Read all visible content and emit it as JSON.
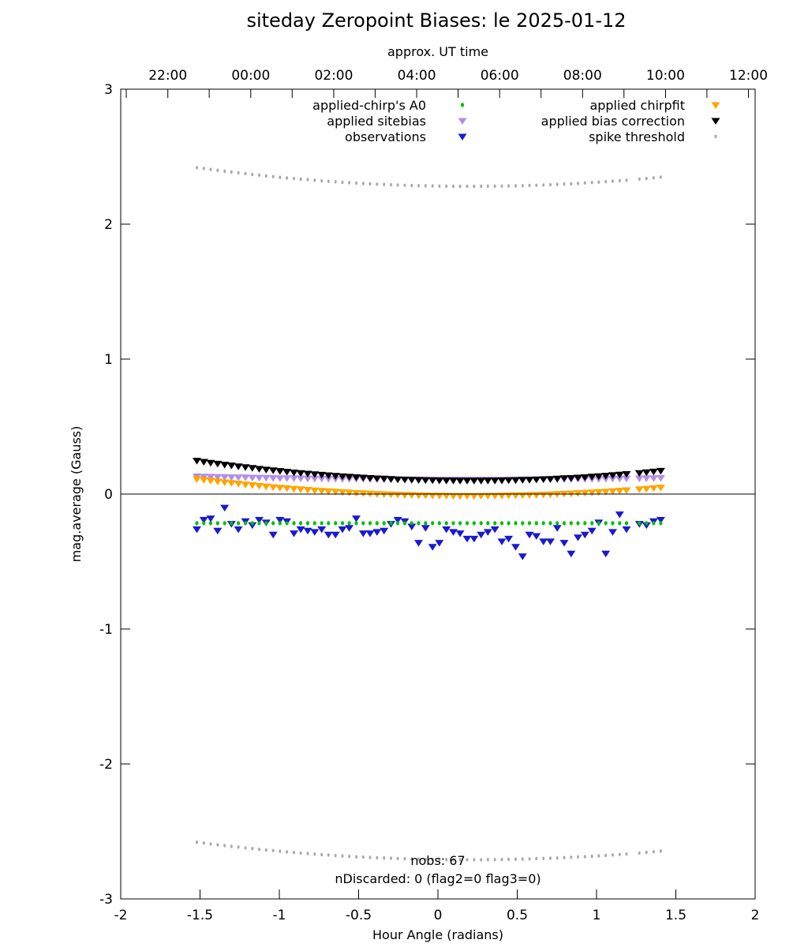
{
  "title": "siteday Zeropoint Biases:  le  2025-01-12",
  "annotations": {
    "nobs": "nobs: 67",
    "ndiscarded": "nDiscarded: 0  (flag2=0  flag3=0)"
  },
  "axes": {
    "x_label": "Hour Angle (radians)",
    "x2_label": "approx. UT time",
    "y_label": "mag.average (Gauss)",
    "x_tick_values": [
      -2,
      -1.5,
      -1,
      -0.5,
      0,
      0.5,
      1,
      1.5,
      2
    ],
    "x_tick_labels": [
      "-2",
      "-1.5",
      "-1",
      "-0.5",
      "0",
      "0.5",
      "1",
      "1.5",
      "2"
    ],
    "y_tick_values": [
      -3,
      -2,
      -1,
      0,
      1,
      2,
      3
    ],
    "y_tick_labels": [
      "-3",
      "-2",
      "-1",
      "0",
      "1",
      "2",
      "3"
    ],
    "x2_ticks": [
      {
        "label": "22:00",
        "ha": -1.703
      },
      {
        "label": "00:00",
        "ha": -1.18
      },
      {
        "label": "02:00",
        "ha": -0.657
      },
      {
        "label": "04:00",
        "ha": -0.134
      },
      {
        "label": "06:00",
        "ha": 0.389
      },
      {
        "label": "08:00",
        "ha": 0.912
      },
      {
        "label": "10:00",
        "ha": 1.435
      },
      {
        "label": "12:00",
        "ha": 1.958
      }
    ],
    "x2_minor_ticks": [
      -1.965,
      -1.442,
      -0.919,
      -0.396,
      0.127,
      0.65,
      1.173,
      1.696
    ]
  },
  "legend": {
    "columns": [
      {
        "items": [
          {
            "label": "applied-chirp's A0",
            "marker": "dot",
            "color": "#00c000",
            "series": "applied_chirps_a0"
          },
          {
            "label": "applied sitebias",
            "marker": "triangle-down",
            "color": "#b58fe6",
            "series": "applied_sitebias"
          },
          {
            "label": "observations",
            "marker": "triangle-down",
            "color": "#1a1ad0",
            "series": "observations"
          }
        ]
      },
      {
        "items": [
          {
            "label": "applied chirpfit",
            "marker": "triangle-down",
            "color": "#ffa500",
            "series": "applied_chirpfit"
          },
          {
            "label": "applied bias correction",
            "marker": "triangle-down",
            "color": "#000000",
            "series": "applied_bias_correction"
          },
          {
            "label": "spike threshold",
            "marker": "dot-small",
            "color": "#a9a9a9",
            "series": "spike_threshold"
          }
        ]
      }
    ]
  },
  "chart_data": {
    "type": "scatter",
    "xlabel": "Hour Angle (radians)",
    "x2label": "approx. UT time",
    "ylabel": "mag.average (Gauss)",
    "xlim": [
      -2,
      2
    ],
    "ylim": [
      -3,
      3
    ],
    "grid": false,
    "n_points": 67,
    "x": [
      -1.52,
      -1.476,
      -1.433,
      -1.389,
      -1.345,
      -1.302,
      -1.258,
      -1.214,
      -1.17,
      -1.127,
      -1.083,
      -1.039,
      -0.996,
      -0.952,
      -0.908,
      -0.865,
      -0.821,
      -0.777,
      -0.733,
      -0.69,
      -0.646,
      -0.602,
      -0.559,
      -0.515,
      -0.471,
      -0.428,
      -0.384,
      -0.34,
      -0.296,
      -0.253,
      -0.209,
      -0.165,
      -0.122,
      -0.078,
      -0.034,
      0.009,
      0.053,
      0.097,
      0.14,
      0.184,
      0.228,
      0.272,
      0.315,
      0.359,
      0.403,
      0.446,
      0.49,
      0.534,
      0.577,
      0.621,
      0.665,
      0.709,
      0.752,
      0.796,
      0.84,
      0.883,
      0.927,
      0.971,
      1.014,
      1.058,
      1.102,
      1.146,
      1.189,
      1.27,
      1.315,
      1.36,
      1.405
    ],
    "series": [
      {
        "name": "spike_threshold_upper",
        "legend": "spike threshold",
        "marker": "dot-small",
        "color": "#a9a9a9",
        "values": [
          2.419,
          2.412,
          2.405,
          2.399,
          2.392,
          2.386,
          2.38,
          2.374,
          2.368,
          2.363,
          2.357,
          2.352,
          2.347,
          2.342,
          2.338,
          2.333,
          2.329,
          2.325,
          2.321,
          2.317,
          2.314,
          2.31,
          2.307,
          2.304,
          2.301,
          2.299,
          2.296,
          2.294,
          2.292,
          2.29,
          2.288,
          2.286,
          2.285,
          2.284,
          2.283,
          2.282,
          2.281,
          2.28,
          2.28,
          2.28,
          2.28,
          2.28,
          2.281,
          2.281,
          2.282,
          2.283,
          2.284,
          2.285,
          2.287,
          2.288,
          2.29,
          2.292,
          2.294,
          2.297,
          2.299,
          2.302,
          2.305,
          2.308,
          2.311,
          2.315,
          2.318,
          2.322,
          2.326,
          2.334,
          2.338,
          2.343,
          2.348
        ]
      },
      {
        "name": "spike_threshold_lower",
        "legend": "spike threshold",
        "marker": "dot-small",
        "color": "#a9a9a9",
        "values": [
          -2.58,
          -2.586,
          -2.593,
          -2.599,
          -2.605,
          -2.611,
          -2.616,
          -2.622,
          -2.627,
          -2.633,
          -2.638,
          -2.642,
          -2.647,
          -2.652,
          -2.656,
          -2.66,
          -2.664,
          -2.668,
          -2.672,
          -2.675,
          -2.679,
          -2.682,
          -2.685,
          -2.688,
          -2.69,
          -2.693,
          -2.695,
          -2.697,
          -2.699,
          -2.701,
          -2.703,
          -2.704,
          -2.705,
          -2.707,
          -2.708,
          -2.708,
          -2.709,
          -2.71,
          -2.71,
          -2.71,
          -2.71,
          -2.71,
          -2.709,
          -2.709,
          -2.708,
          -2.707,
          -2.706,
          -2.705,
          -2.704,
          -2.702,
          -2.7,
          -2.699,
          -2.697,
          -2.694,
          -2.692,
          -2.689,
          -2.687,
          -2.684,
          -2.681,
          -2.678,
          -2.674,
          -2.671,
          -2.667,
          -2.66,
          -2.655,
          -2.651,
          -2.646
        ]
      },
      {
        "name": "applied_sitebias",
        "legend": "applied sitebias",
        "marker": "triangle-down",
        "color": "#b58fe6",
        "values": [
          0.132,
          0.13,
          0.129,
          0.128,
          0.127,
          0.126,
          0.125,
          0.124,
          0.123,
          0.122,
          0.121,
          0.12,
          0.119,
          0.119,
          0.118,
          0.117,
          0.116,
          0.116,
          0.115,
          0.114,
          0.114,
          0.113,
          0.113,
          0.112,
          0.112,
          0.111,
          0.111,
          0.11,
          0.11,
          0.11,
          0.109,
          0.109,
          0.109,
          0.109,
          0.108,
          0.108,
          0.108,
          0.108,
          0.108,
          0.108,
          0.108,
          0.108,
          0.108,
          0.108,
          0.108,
          0.108,
          0.109,
          0.109,
          0.109,
          0.109,
          0.11,
          0.11,
          0.11,
          0.111,
          0.111,
          0.112,
          0.112,
          0.113,
          0.113,
          0.114,
          0.115,
          0.115,
          0.116,
          0.117,
          0.118,
          0.119,
          0.12
        ]
      },
      {
        "name": "applied_chirpfit",
        "legend": "applied chirpfit",
        "marker": "triangle-down",
        "color": "#ffa500",
        "values": [
          0.112,
          0.106,
          0.1,
          0.094,
          0.088,
          0.083,
          0.077,
          0.072,
          0.067,
          0.062,
          0.057,
          0.052,
          0.048,
          0.044,
          0.04,
          0.036,
          0.032,
          0.028,
          0.025,
          0.021,
          0.018,
          0.015,
          0.012,
          0.009,
          0.007,
          0.005,
          0.002,
          0.0,
          -0.002,
          -0.003,
          -0.005,
          -0.006,
          -0.008,
          -0.009,
          -0.01,
          -0.01,
          -0.011,
          -0.012,
          -0.012,
          -0.012,
          -0.012,
          -0.012,
          -0.011,
          -0.011,
          -0.01,
          -0.009,
          -0.008,
          -0.007,
          -0.006,
          -0.005,
          -0.003,
          -0.001,
          0.001,
          0.003,
          0.005,
          0.008,
          0.01,
          0.013,
          0.016,
          0.019,
          0.022,
          0.026,
          0.029,
          0.036,
          0.04,
          0.045,
          0.049
        ]
      },
      {
        "name": "applied_bias_correction",
        "legend": "applied bias correction",
        "marker": "triangle-down",
        "color": "#000000",
        "values": [
          0.248,
          0.24,
          0.233,
          0.226,
          0.219,
          0.213,
          0.206,
          0.2,
          0.194,
          0.188,
          0.182,
          0.177,
          0.172,
          0.166,
          0.161,
          0.157,
          0.152,
          0.148,
          0.144,
          0.14,
          0.136,
          0.132,
          0.129,
          0.126,
          0.123,
          0.12,
          0.117,
          0.115,
          0.112,
          0.11,
          0.108,
          0.107,
          0.105,
          0.104,
          0.103,
          0.102,
          0.101,
          0.101,
          0.1,
          0.1,
          0.1,
          0.1,
          0.101,
          0.101,
          0.102,
          0.103,
          0.104,
          0.106,
          0.107,
          0.109,
          0.111,
          0.113,
          0.115,
          0.118,
          0.12,
          0.123,
          0.126,
          0.13,
          0.133,
          0.137,
          0.141,
          0.145,
          0.149,
          0.157,
          0.162,
          0.167,
          0.173
        ]
      },
      {
        "name": "observations",
        "legend": "observations",
        "marker": "triangle-down",
        "color": "#1a1ad0",
        "values": [
          -0.26,
          -0.19,
          -0.18,
          -0.27,
          -0.1,
          -0.22,
          -0.26,
          -0.2,
          -0.23,
          -0.19,
          -0.21,
          -0.3,
          -0.19,
          -0.2,
          -0.29,
          -0.26,
          -0.27,
          -0.28,
          -0.26,
          -0.3,
          -0.3,
          -0.26,
          -0.25,
          -0.18,
          -0.29,
          -0.29,
          -0.28,
          -0.27,
          -0.22,
          -0.19,
          -0.2,
          -0.24,
          -0.36,
          -0.25,
          -0.39,
          -0.36,
          -0.26,
          -0.28,
          -0.29,
          -0.33,
          -0.33,
          -0.3,
          -0.28,
          -0.26,
          -0.35,
          -0.33,
          -0.39,
          -0.46,
          -0.3,
          -0.31,
          -0.35,
          -0.35,
          -0.25,
          -0.36,
          -0.44,
          -0.32,
          -0.3,
          -0.27,
          -0.21,
          -0.44,
          -0.28,
          -0.15,
          -0.26,
          -0.22,
          -0.23,
          -0.2,
          -0.19
        ]
      },
      {
        "name": "applied_chirps_a0",
        "legend": "applied-chirp's A0",
        "marker": "dot",
        "color": "#00c000",
        "constant": -0.216
      }
    ]
  }
}
